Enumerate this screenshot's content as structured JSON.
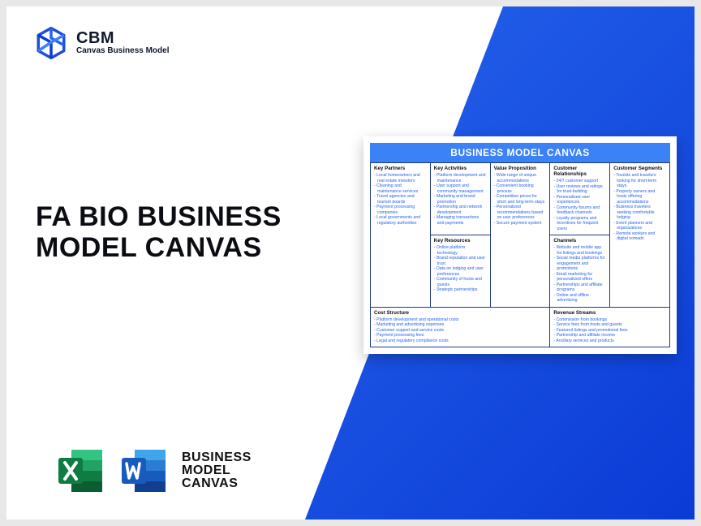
{
  "colors": {
    "brand_blue": "#2563eb",
    "brand_blue_dark": "#0b3bd6",
    "card_title_bg": "#3b82f6",
    "text_dark": "#0b0d12",
    "cell_border": "#1e3a8a",
    "item_text": "#2563eb",
    "page_bg": "#ffffff",
    "outer_bg": "#e8e8e8",
    "excel_green_dark": "#107c41",
    "excel_green_mid": "#21a366",
    "excel_green_light": "#33c481",
    "word_blue_dark": "#103f91",
    "word_blue_mid": "#185abd",
    "word_blue_light": "#41a5ee"
  },
  "header": {
    "brand_abbr": "CBM",
    "brand_full": "Canvas Business Model"
  },
  "headline": "FA BIO BUSINESS MODEL CANVAS",
  "footer": {
    "line1": "BUSINESS",
    "line2": "MODEL",
    "line3": "CANVAS"
  },
  "preview": {
    "title": "BUSINESS MODEL CANVAS",
    "sections": {
      "key_partners": {
        "title": "Key Partners",
        "items": [
          "Local homeowners and real estate investors",
          "Cleaning and maintenance services",
          "Travel agencies and tourism boards",
          "Payment processing companies",
          "Local governments and regulatory authorities"
        ]
      },
      "key_activities": {
        "title": "Key Activities",
        "items": [
          "Platform development and maintenance",
          "User support and community management",
          "Marketing and brand promotion",
          "Partnership and network development",
          "Managing transactions and payments"
        ]
      },
      "key_resources": {
        "title": "Key Resources",
        "items": [
          "Online platform technology",
          "Brand reputation and user trust",
          "Data on lodging and user preferences",
          "Community of hosts and guests",
          "Strategic partnerships"
        ]
      },
      "value_proposition": {
        "title": "Value Proposition",
        "items": [
          "Wide range of unique accommodations",
          "Convenient booking process",
          "Competitive prices for short and long-term stays",
          "Personalized recommendations based on user preferences",
          "Secure payment system"
        ]
      },
      "customer_relationships": {
        "title": "Customer Relationships",
        "items": [
          "24/7 customer support",
          "User reviews and ratings for trust-building",
          "Personalized user experiences",
          "Community forums and feedback channels",
          "Loyalty programs and incentives for frequent users"
        ]
      },
      "channels": {
        "title": "Channels",
        "items": [
          "Website and mobile app for listings and bookings",
          "Social media platforms for engagement and promotions",
          "Email marketing for personalized offers",
          "Partnerships and affiliate programs",
          "Online and offline advertising"
        ]
      },
      "customer_segments": {
        "title": "Customer Segments",
        "items": [
          "Tourists and travelers looking for short-term stays",
          "Property owners and hosts offering accommodations",
          "Business travelers seeking comfortable lodging",
          "Event planners and organizations",
          "Remote workers and digital nomads"
        ]
      },
      "cost_structure": {
        "title": "Cost Structure",
        "items": [
          "Platform development and operational costs",
          "Marketing and advertising expenses",
          "Customer support and service costs",
          "Payment processing fees",
          "Legal and regulatory compliance costs"
        ]
      },
      "revenue_streams": {
        "title": "Revenue Streams",
        "items": [
          "Commission from bookings",
          "Service fees from hosts and guests",
          "Featured listings and promotional fees",
          "Partnership and affiliate income",
          "Ancillary services and products"
        ]
      }
    }
  }
}
